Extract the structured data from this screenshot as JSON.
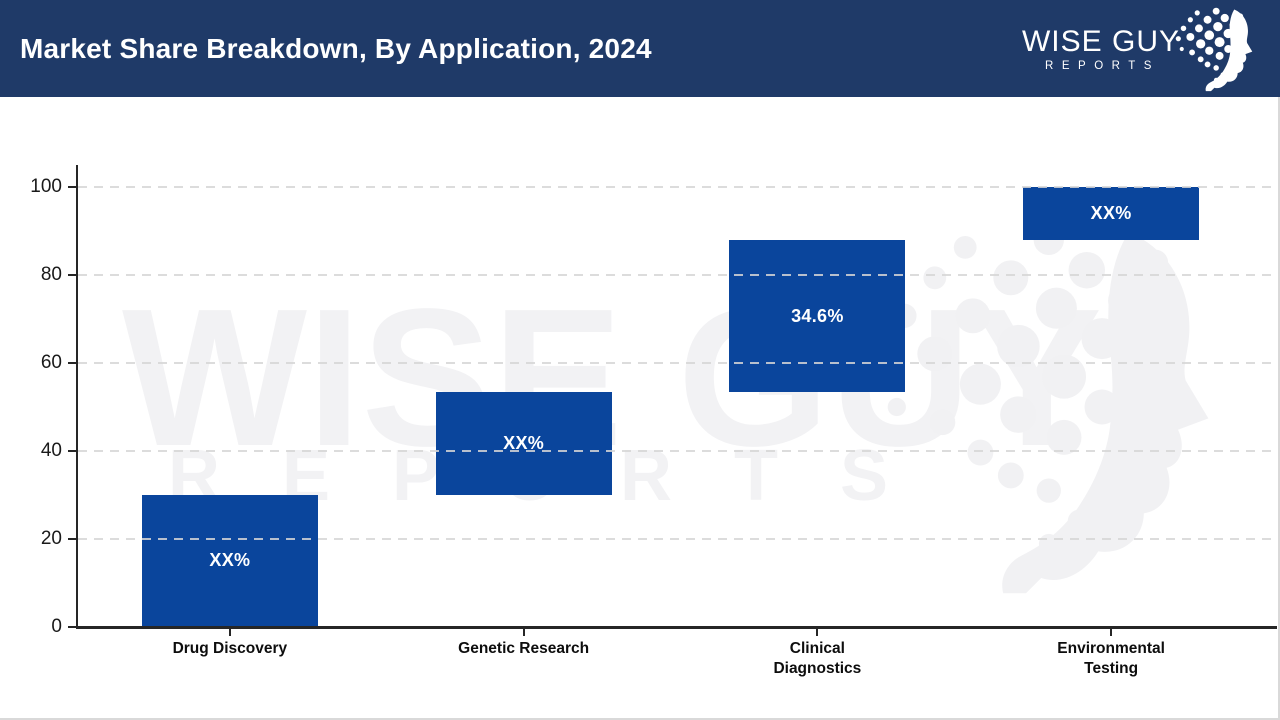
{
  "header": {
    "title": "Market Share Breakdown, By Application, 2024",
    "logo": {
      "line1": "WISE GUY",
      "line2": "REPORTS"
    }
  },
  "watermark": {
    "line1": "WISE GUY",
    "line2": "REPORTS"
  },
  "chart_data": {
    "type": "bar",
    "variant": "waterfall",
    "title": "Market Share Breakdown, By Application, 2024",
    "categories": [
      "Drug Discovery",
      "Genetic Research",
      "Clinical Diagnostics",
      "Environmental Testing"
    ],
    "category_label_lines": [
      [
        "Drug Discovery"
      ],
      [
        "Genetic Research"
      ],
      [
        "Clinical",
        "Diagnostics"
      ],
      [
        "Environmental",
        "Testing"
      ]
    ],
    "segments": [
      {
        "category": "Drug Discovery",
        "start": 0,
        "end": 30,
        "value": 30,
        "label": "XX%"
      },
      {
        "category": "Genetic Research",
        "start": 30,
        "end": 53.3,
        "value": 23.3,
        "label": "XX%"
      },
      {
        "category": "Clinical Diagnostics",
        "start": 53.3,
        "end": 87.9,
        "value": 34.6,
        "label": "34.6%"
      },
      {
        "category": "Environmental Testing",
        "start": 87.9,
        "end": 100,
        "value": 12.1,
        "label": "XX%"
      }
    ],
    "xlabel": "",
    "ylabel": "",
    "ylim": [
      0,
      100
    ],
    "yticks": [
      0,
      20,
      40,
      60,
      80,
      100
    ],
    "grid": {
      "axis": "y",
      "style": "dashed",
      "color": "#d9d9d9"
    },
    "legend": null,
    "bar_color": "#0a459c",
    "bar_label_color": "#ffffff"
  },
  "colors": {
    "header_background": "#1f3a68",
    "bar": "#0a459c",
    "watermark": "#f2f2f4",
    "axis": "#262626"
  }
}
